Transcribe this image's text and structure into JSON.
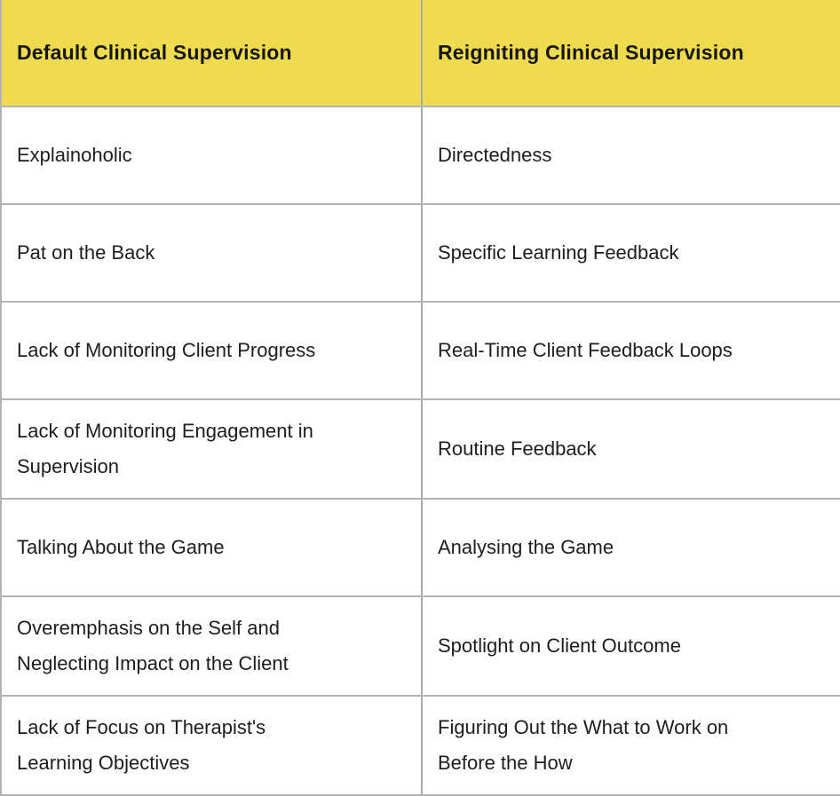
{
  "colors": {
    "header_bg": "#efdb4f",
    "header_text": "#161616",
    "body_text": "#1d1d1d",
    "border_color": "#b3b3b3",
    "divider_color": "#a9a9a9"
  },
  "table": {
    "headers": [
      "Default Clinical Supervision",
      "Reigniting Clinical Supervision"
    ],
    "rows": [
      {
        "default": "Explainoholic",
        "reigniting": "Directedness"
      },
      {
        "default": "Pat on the Back",
        "reigniting": "Specific Learning Feedback"
      },
      {
        "default": "Lack of Monitoring Client Progress",
        "reigniting": "Real-Time Client Feedback Loops"
      },
      {
        "default": "Lack of Monitoring Engagement in\nSupervision",
        "reigniting": "Routine Feedback"
      },
      {
        "default": "Talking About the Game",
        "reigniting": "Analysing the Game"
      },
      {
        "default": "Overemphasis on the Self and\nNeglecting Impact on the Client",
        "reigniting": "Spotlight on Client Outcome"
      },
      {
        "default": "Lack of Focus on Therapist's\nLearning Objectives",
        "reigniting": "Figuring Out the What to Work on\nBefore the How"
      }
    ]
  }
}
